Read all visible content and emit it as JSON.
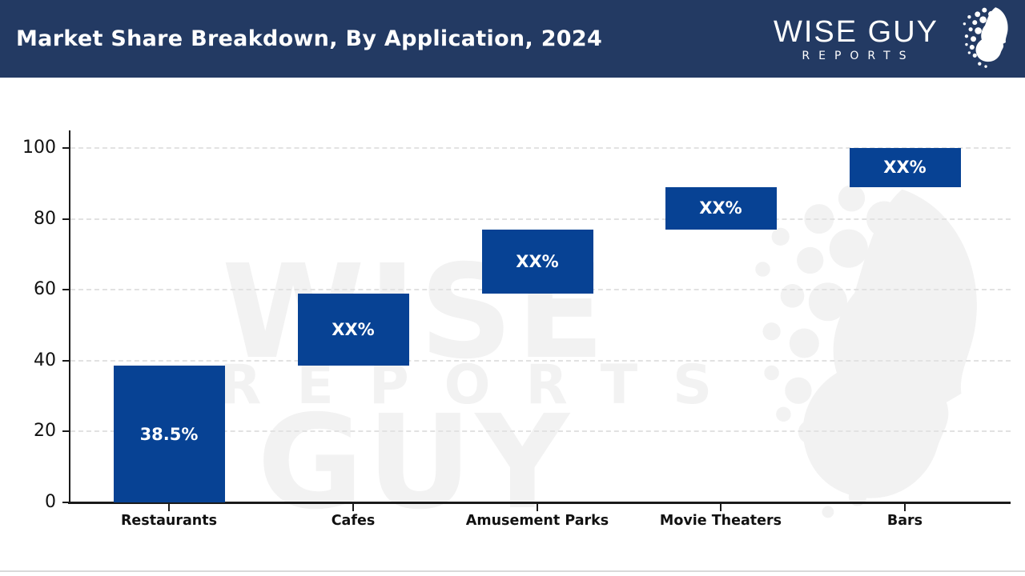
{
  "header": {
    "title": "Market Share Breakdown, By Application, 2024",
    "bg_color": "#233a63",
    "logo": {
      "line1": "WISE GUY",
      "line2": "REPORTS",
      "icon": "dotted-head-profile"
    }
  },
  "watermark": {
    "line1": "WISE GUY",
    "line2": "REPORTS",
    "icon": "dotted-head-profile"
  },
  "chart_data": {
    "type": "bar",
    "subtype": "waterfall",
    "title": "Market Share Breakdown, By Application, 2024",
    "xlabel": "",
    "ylabel": "",
    "ylim": [
      0,
      100
    ],
    "y_ticks": [
      0,
      20,
      40,
      60,
      80,
      100
    ],
    "grid": "horizontal-dashed",
    "bar_color": "#074294",
    "bar_label_color": "#ffffff",
    "categories": [
      "Restaurants",
      "Cafes",
      "Amusement Parks",
      "Movie Theaters",
      "Bars"
    ],
    "segments": [
      {
        "category": "Restaurants",
        "start": 0,
        "end": 38.5,
        "value": 38.5,
        "label": "38.5%"
      },
      {
        "category": "Cafes",
        "start": 38.5,
        "end": 59,
        "value": 20.5,
        "label": "XX%"
      },
      {
        "category": "Amusement Parks",
        "start": 59,
        "end": 77,
        "value": 18,
        "label": "XX%"
      },
      {
        "category": "Movie Theaters",
        "start": 77,
        "end": 89,
        "value": 12,
        "label": "XX%"
      },
      {
        "category": "Bars",
        "start": 89,
        "end": 100,
        "value": 11,
        "label": "XX%"
      }
    ]
  }
}
